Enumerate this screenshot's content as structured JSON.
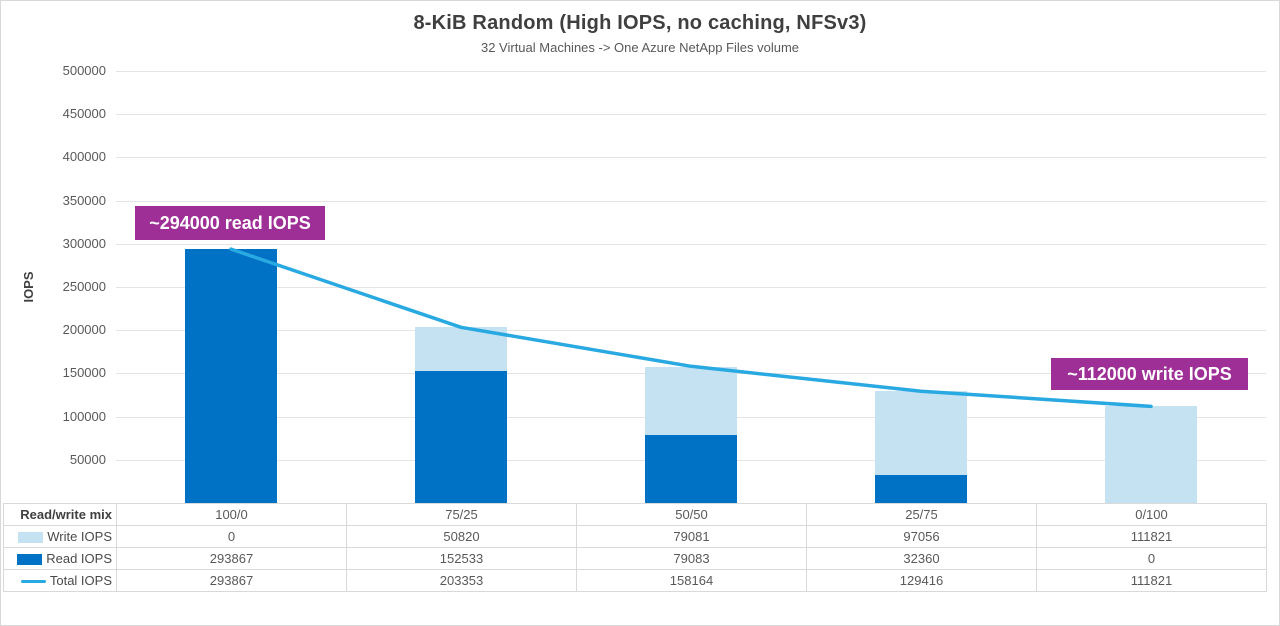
{
  "title": "8-KiB Random (High IOPS, no caching, NFSv3)",
  "subtitle": "32 Virtual Machines -> One Azure NetApp Files volume",
  "chart_data": {
    "type": "bar",
    "combo": "stacked-bar-with-line",
    "title": "8-KiB Random (High IOPS, no caching, NFSv3)",
    "subtitle": "32 Virtual Machines -> One Azure NetApp Files volume",
    "xlabel_header": "Read/write mix",
    "ylabel": "IOPS",
    "categories": [
      "100/0",
      "75/25",
      "50/50",
      "25/75",
      "0/100"
    ],
    "series": [
      {
        "name": "Write IOPS",
        "type": "bar",
        "color": "#c5e2f3",
        "values": [
          0,
          50820,
          79081,
          97056,
          111821
        ]
      },
      {
        "name": "Read IOPS",
        "type": "bar",
        "color": "#0072c6",
        "values": [
          293867,
          152533,
          79083,
          32360,
          0
        ]
      },
      {
        "name": "Total IOPS",
        "type": "line",
        "color": "#29a9e1",
        "values": [
          293867,
          203353,
          158164,
          129416,
          111821
        ]
      }
    ],
    "ylim": [
      0,
      500000
    ],
    "ytick_step": 50000,
    "yticks": [
      50000,
      100000,
      150000,
      200000,
      250000,
      300000,
      350000,
      400000,
      450000,
      500000
    ],
    "grid": true,
    "legend_position": "table-left-column",
    "annotations": [
      {
        "text": "~294000 read IOPS",
        "color": "#9e2f96",
        "target": "first bar (read)"
      },
      {
        "text": "~112000 write IOPS",
        "color": "#9e2f96",
        "target": "last bar (write)"
      }
    ],
    "colors": {
      "read_bar": "#0072c6",
      "write_bar": "#c5e2f3",
      "total_line": "#29a9e1",
      "annotation_bg": "#9e2f96",
      "gridline": "#e4e4e4",
      "table_border": "#d9d9d9",
      "text_dark": "#3f3f3f",
      "text_gray": "#595959"
    }
  }
}
